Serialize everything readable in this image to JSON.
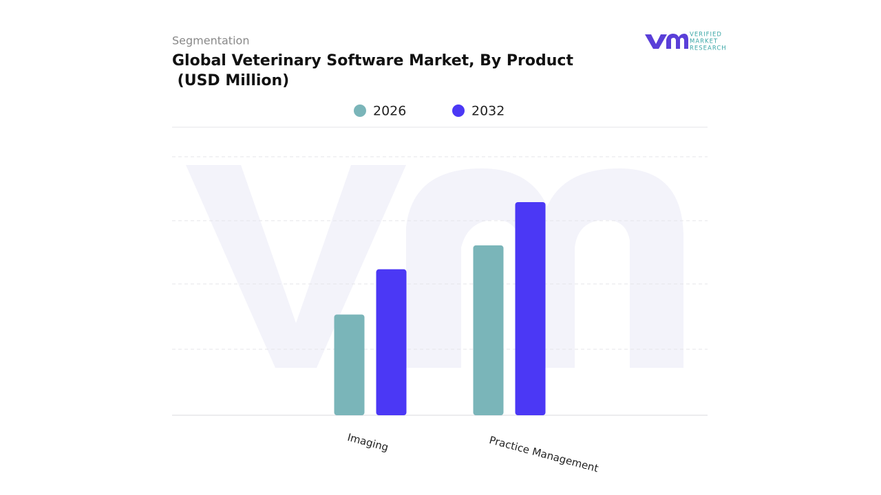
{
  "chart_data": {
    "type": "bar",
    "subtitle": "Segmentation",
    "title": "Global Veterinary Software Market, By Product",
    "title_line2": " (USD Million)",
    "logo": {
      "line1": "VERIFIED",
      "line2": "MARKET",
      "line3": "RESEARCH"
    },
    "categories": [
      "Imaging",
      "Practice Management"
    ],
    "series": [
      {
        "name": "2026",
        "color": "#7ab5b9",
        "values": [
          1.56,
          2.63
        ]
      },
      {
        "name": "2032",
        "color": "#4b38f5",
        "values": [
          2.26,
          3.3
        ]
      }
    ],
    "ylim": [
      0,
      4.46
    ]
  }
}
